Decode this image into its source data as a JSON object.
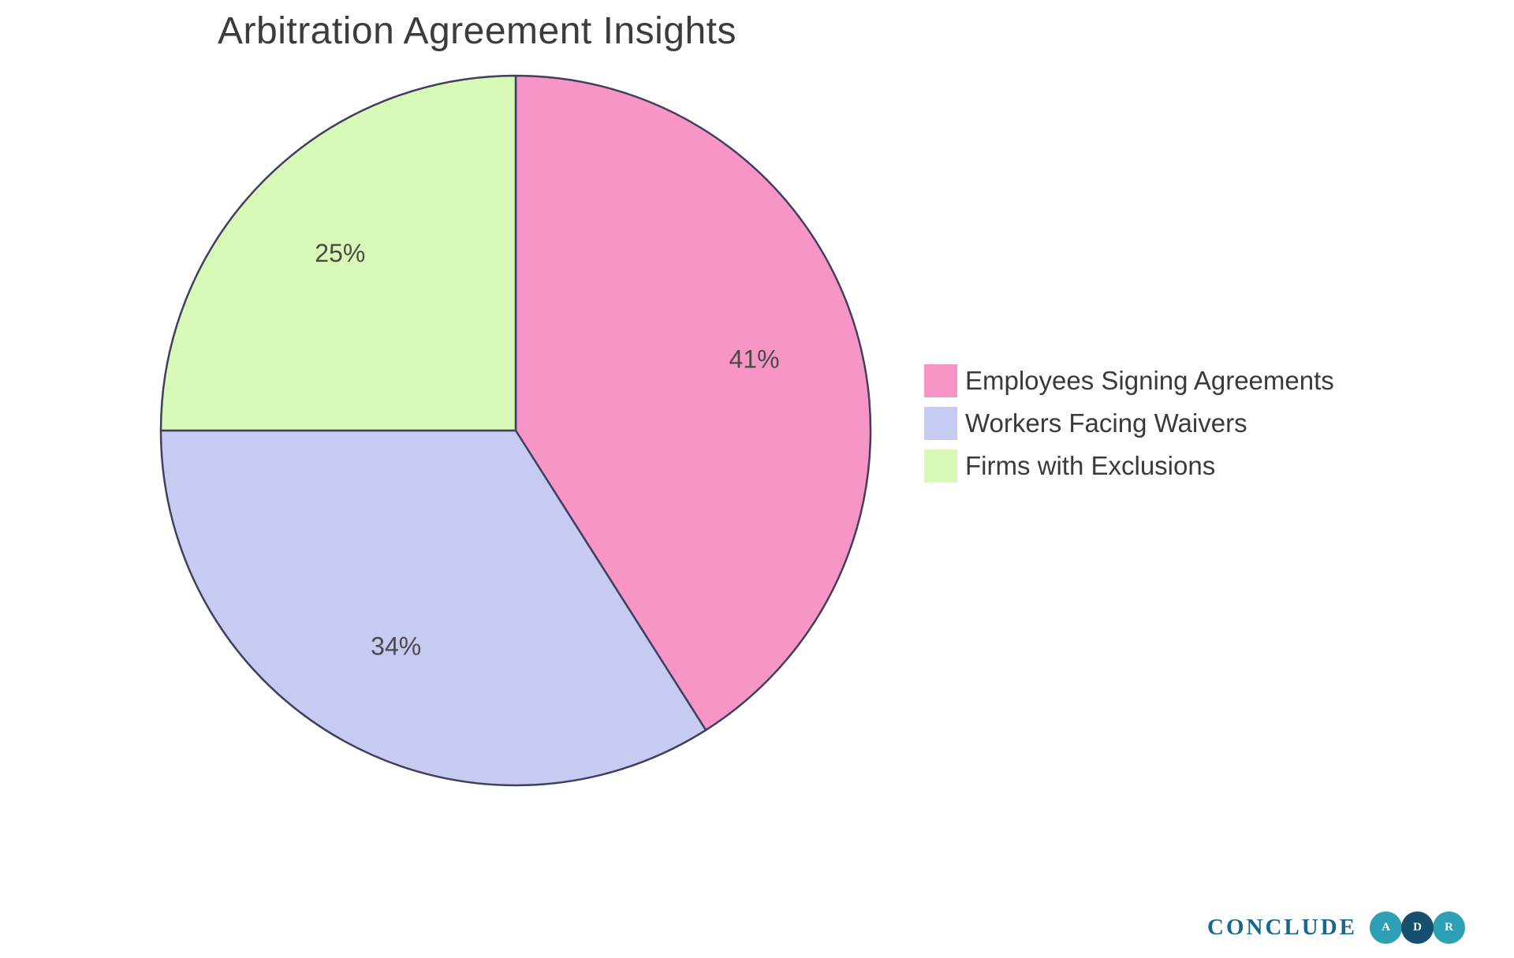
{
  "title": "Arbitration Agreement Insights",
  "chart_data": {
    "type": "pie",
    "title": "Arbitration Agreement Insights",
    "start_angle_deg": 0,
    "direction": "clockwise",
    "stroke_color": "#3f4060",
    "legend_position": "right",
    "slices": [
      {
        "label": "Employees Signing Agreements",
        "value": 41,
        "display": "41%",
        "color": "#f895c7"
      },
      {
        "label": "Workers Facing Waivers",
        "value": 34,
        "display": "34%",
        "color": "#c7cbf1"
      },
      {
        "label": "Firms with Exclusions",
        "value": 25,
        "display": "25%",
        "color": "#d7f9b5"
      }
    ]
  },
  "branding": {
    "wordmark": "CONCLUDE",
    "wordmark_color": "#16688e",
    "badge_letters": [
      "A",
      "D",
      "R"
    ],
    "badge_colors": [
      "#2e9fb4",
      "#174f6e",
      "#2e9fb4"
    ]
  }
}
